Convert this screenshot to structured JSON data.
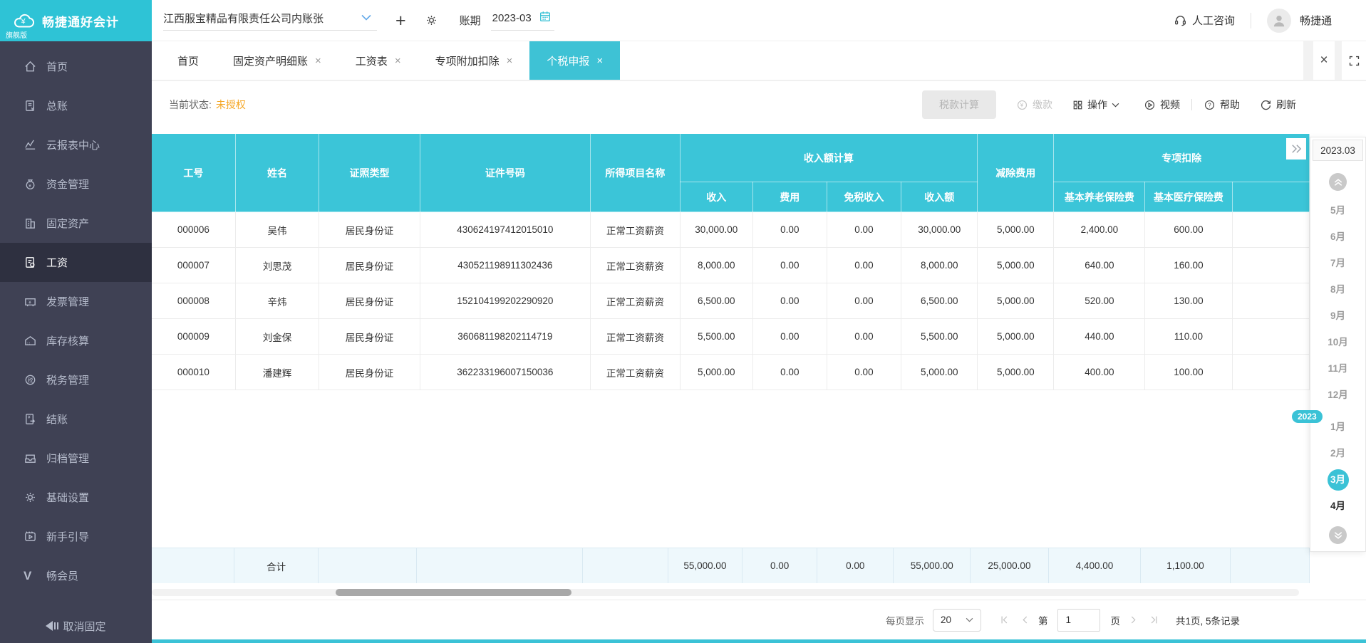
{
  "brand": {
    "name": "畅捷通好会计",
    "edition": "旗舰版"
  },
  "sidebar": {
    "items": [
      {
        "label": "首页"
      },
      {
        "label": "总账"
      },
      {
        "label": "云报表中心"
      },
      {
        "label": "资金管理"
      },
      {
        "label": "固定资产"
      },
      {
        "label": "工资"
      },
      {
        "label": "发票管理"
      },
      {
        "label": "库存核算"
      },
      {
        "label": "税务管理"
      },
      {
        "label": "结账"
      },
      {
        "label": "归档管理"
      },
      {
        "label": "基础设置"
      },
      {
        "label": "新手引导"
      },
      {
        "label": "畅会员"
      }
    ],
    "unpin_label": "取消固定"
  },
  "topbar": {
    "company": "江西服宝精品有限责任公司内账张",
    "period_label": "账期",
    "period_value": "2023-03",
    "support_label": "人工咨询",
    "user_name": "畅捷通"
  },
  "tabs": [
    {
      "label": "首页",
      "closable": false
    },
    {
      "label": "固定资产明细账",
      "closable": true
    },
    {
      "label": "工资表",
      "closable": true
    },
    {
      "label": "专项附加扣除",
      "closable": true
    },
    {
      "label": "个税申报",
      "closable": true,
      "active": true
    }
  ],
  "toolbar": {
    "status_label": "当前状态:",
    "status_value": "未授权",
    "calc_button": "税款计算",
    "pay_button": "缴款",
    "action_button": "操作",
    "video_button": "视频",
    "help_button": "帮助",
    "refresh_button": "刷新"
  },
  "table": {
    "columns": [
      "工号",
      "姓名",
      "证照类型",
      "证件号码",
      "所得项目名称"
    ],
    "group_income": {
      "label": "收入额计算",
      "children": [
        "收入",
        "费用",
        "免税收入",
        "收入额"
      ]
    },
    "deduction_col": "减除费用",
    "group_special": {
      "label": "专项扣除",
      "children": [
        "基本养老保险费",
        "基本医疗保险费"
      ]
    },
    "rows": [
      [
        "000006",
        "吴伟",
        "居民身份证",
        "430624197412015010",
        "正常工资薪资",
        "30,000.00",
        "0.00",
        "0.00",
        "30,000.00",
        "5,000.00",
        "2,400.00",
        "600.00"
      ],
      [
        "000007",
        "刘思茂",
        "居民身份证",
        "430521198911302436",
        "正常工资薪资",
        "8,000.00",
        "0.00",
        "0.00",
        "8,000.00",
        "5,000.00",
        "640.00",
        "160.00"
      ],
      [
        "000008",
        "辛炜",
        "居民身份证",
        "152104199202290920",
        "正常工资薪资",
        "6,500.00",
        "0.00",
        "0.00",
        "6,500.00",
        "5,000.00",
        "520.00",
        "130.00"
      ],
      [
        "000009",
        "刘金保",
        "居民身份证",
        "360681198202114719",
        "正常工资薪资",
        "5,500.00",
        "0.00",
        "0.00",
        "5,500.00",
        "5,000.00",
        "440.00",
        "110.00"
      ],
      [
        "000010",
        "潘建辉",
        "居民身份证",
        "362233196007150036",
        "正常工资薪资",
        "5,000.00",
        "0.00",
        "0.00",
        "5,000.00",
        "5,000.00",
        "400.00",
        "100.00"
      ]
    ],
    "total_label": "合计",
    "totals": [
      "55,000.00",
      "0.00",
      "0.00",
      "55,000.00",
      "25,000.00",
      "4,400.00",
      "1,100.00"
    ]
  },
  "pagination": {
    "page_size_label": "每页显示",
    "page_size": "20",
    "page_prefix": "第",
    "page_value": "1",
    "page_suffix": "页",
    "summary": "共1页, 5条记录"
  },
  "month_panel": {
    "current": "2023.03",
    "year_badge": "2023",
    "months": [
      {
        "label": "5月"
      },
      {
        "label": "6月"
      },
      {
        "label": "7月"
      },
      {
        "label": "8月"
      },
      {
        "label": "9月"
      },
      {
        "label": "10月"
      },
      {
        "label": "11月"
      },
      {
        "label": "12月"
      },
      {
        "label": "1月",
        "badge_before": true
      },
      {
        "label": "2月"
      },
      {
        "label": "3月",
        "active": true
      },
      {
        "label": "4月",
        "strong": true
      }
    ]
  }
}
